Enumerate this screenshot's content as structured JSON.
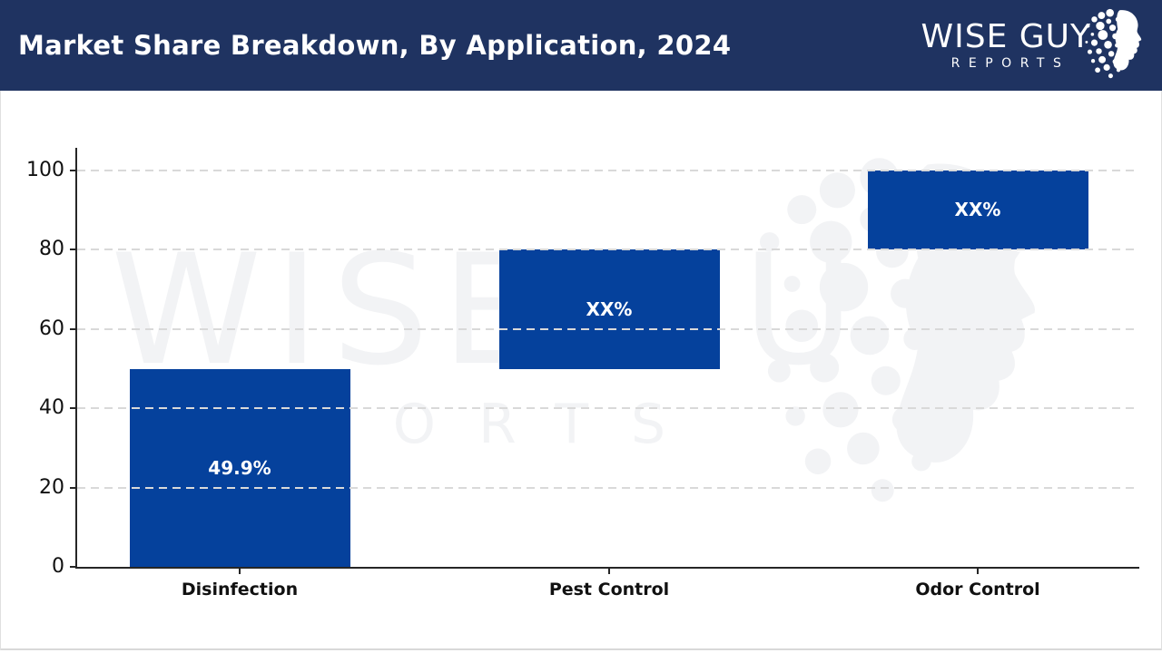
{
  "header": {
    "title": "Market Share Breakdown, By Application, 2024",
    "background": "#1f3361",
    "logo": {
      "line1": "WISE GUY",
      "line2": "REPORTS",
      "head_icon": "dotted-head-profile-icon"
    }
  },
  "watermark": {
    "line1": "WISE GU",
    "y_letter": "Y",
    "line2": "REPORTS",
    "head_icon": "dotted-head-profile-watermark"
  },
  "chart_data": {
    "type": "bar",
    "subtype": "floating_stacked_segments",
    "title": "Market Share Breakdown, By Application, 2024",
    "categories": [
      "Disinfection",
      "Pest Control",
      "Odor Control"
    ],
    "segments": [
      {
        "category": "Disinfection",
        "start": 0,
        "end": 49.9,
        "label": "49.9%"
      },
      {
        "category": "Pest Control",
        "start": 49.9,
        "end": 79.9,
        "label": "XX%"
      },
      {
        "category": "Odor Control",
        "start": 79.9,
        "end": 100,
        "label": "XX%"
      }
    ],
    "ylim": [
      0,
      105
    ],
    "yticks": [
      0,
      20,
      40,
      60,
      80,
      100
    ],
    "xlabel": "",
    "ylabel": "",
    "grid": {
      "axis": "y",
      "style": "dashed",
      "color": "#d9d9d9"
    },
    "legend": null,
    "bar_color": "#05419c",
    "bar_label_color": "#ffffff",
    "axis_color": "#262626"
  }
}
